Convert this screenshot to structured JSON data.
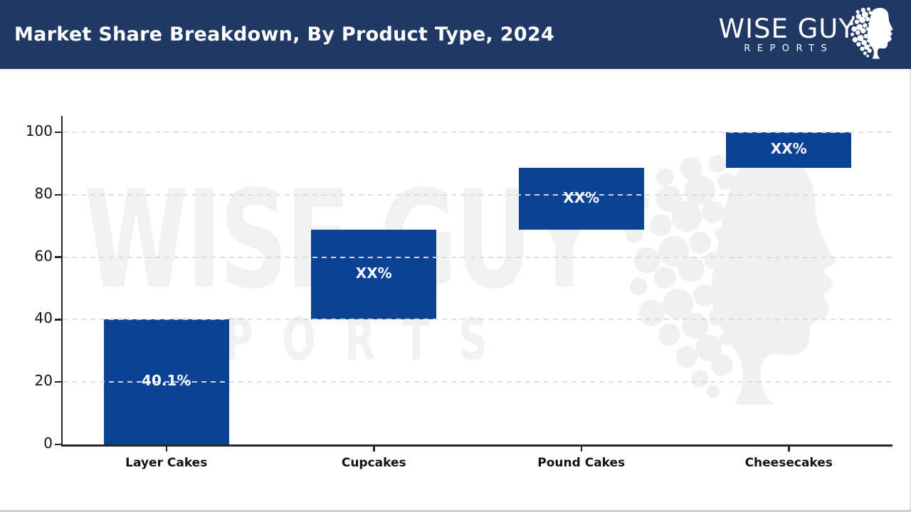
{
  "header": {
    "title": "Market Share Breakdown, By Product Type, 2024"
  },
  "brand": {
    "wordmark_line1": "WISE GUY",
    "wordmark_line2": "REPORTS",
    "head_icon": "dotted-face-profile"
  },
  "watermark": {
    "line1": "WISE GUY",
    "line2": "REPORTS"
  },
  "chart_data": {
    "type": "bar",
    "subtype": "waterfall-cumulative",
    "title": "Market Share Breakdown, By Product Type, 2024",
    "categories": [
      "Layer Cakes",
      "Cupcakes",
      "Pound Cakes",
      "Cheesecakes"
    ],
    "segments": [
      {
        "category": "Layer Cakes",
        "start": 0,
        "end": 40.1,
        "label": "40.1%"
      },
      {
        "category": "Cupcakes",
        "start": 40.1,
        "end": 68.9,
        "label": "XX%"
      },
      {
        "category": "Pound Cakes",
        "start": 68.9,
        "end": 88.5,
        "label": "XX%"
      },
      {
        "category": "Cheesecakes",
        "start": 88.5,
        "end": 100,
        "label": "XX%"
      }
    ],
    "yticks": [
      0,
      20,
      40,
      60,
      80,
      100
    ],
    "ylim": [
      0,
      105
    ],
    "xlabel": "",
    "ylabel": "",
    "grid": {
      "horizontal": true,
      "style": "dashed",
      "above_bars": true
    },
    "legend": null,
    "bar_color": "#0a4296",
    "bar_label_color": "#ffffff"
  },
  "colors": {
    "header_bg": "#1f3864",
    "axis": "#262626",
    "grid": "#dcdcdc",
    "watermark": "#f0f0f2",
    "bar": "#0a4296",
    "title_text": "#ffffff",
    "tick_text": "#111111"
  }
}
